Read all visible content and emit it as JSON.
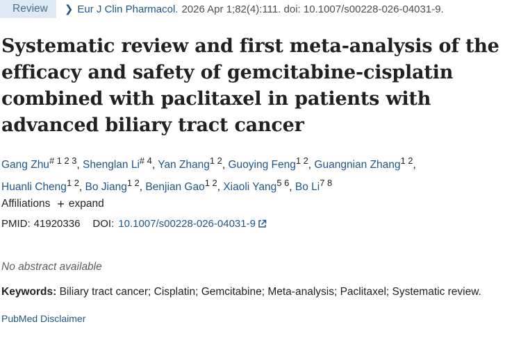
{
  "badge": "Review",
  "citation": {
    "journal": "Eur J Clin Pharmacol.",
    "details": "2026 Apr 1;82(4):111. doi: 10.1007/s00228-026-04031-9."
  },
  "title": "Systematic review and first meta-analysis of the efficacy and safety of gemcitabine-cisplatin combined with paclitaxel in patients with advanced biliary tract cancer",
  "authors": [
    {
      "name": "Gang Zhu",
      "sup": "# 1 2 3"
    },
    {
      "name": "Shenglan Li",
      "sup": "# 4"
    },
    {
      "name": "Yan Zhang",
      "sup": "1 2"
    },
    {
      "name": "Guoying Feng",
      "sup": "1 2"
    },
    {
      "name": "Guangnian Zhang",
      "sup": "1 2"
    },
    {
      "name": "Huanli Cheng",
      "sup": "1 2"
    },
    {
      "name": "Bo Jiang",
      "sup": "1 2"
    },
    {
      "name": "Benjian Gao",
      "sup": "1 2"
    },
    {
      "name": "Xiaoli Yang",
      "sup": "5 6"
    },
    {
      "name": "Bo Li",
      "sup": "7 8"
    }
  ],
  "affiliations": {
    "label": "Affiliations",
    "expand": "expand",
    "icon": "plus-icon"
  },
  "ids": {
    "pmid_label": "PMID:",
    "pmid": "41920336",
    "doi_label": "DOI:",
    "doi": "10.1007/s00228-026-04031-9",
    "doi_icon": "external-link-icon"
  },
  "no_abstract": "No abstract available",
  "keywords": {
    "label": "Keywords:",
    "text": "Biliary tract cancer; Cisplatin; Gemcitabine; Meta-analysis; Paclitaxel; Systematic review."
  },
  "disclaimer": "PubMed Disclaimer",
  "colors": {
    "link": "#20558a",
    "badge_bg": "#dfe9f3",
    "text": "#212121"
  }
}
